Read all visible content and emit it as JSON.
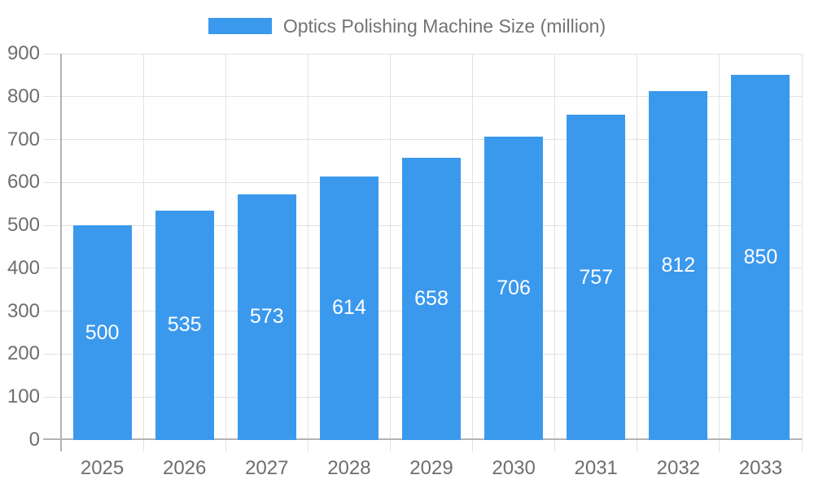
{
  "legend": {
    "label": "Optics Polishing Machine Size (million)"
  },
  "chart_data": {
    "type": "bar",
    "title": "Optics Polishing Machine Size (million)",
    "categories": [
      "2025",
      "2026",
      "2027",
      "2028",
      "2029",
      "2030",
      "2031",
      "2032",
      "2033"
    ],
    "values": [
      500,
      535,
      573,
      614,
      658,
      706,
      757,
      812,
      850
    ],
    "xlabel": "",
    "ylabel": "",
    "ylim": [
      0,
      900
    ],
    "ytick_step": 100,
    "yticks": [
      "0",
      "100",
      "200",
      "300",
      "400",
      "500",
      "600",
      "700",
      "800",
      "900"
    ],
    "grid": {
      "horizontal": true,
      "vertical": true
    },
    "legend_position": "top-center",
    "bar_labels_inside": true,
    "colors": {
      "bar": "#3b99ed",
      "bar_label": "#ffffff",
      "axis_line": "#b3b3b3",
      "gridline": "#e2e2e2",
      "tick_text": "#6e6e6e",
      "legend_text": "#737373",
      "background": "#ffffff"
    }
  }
}
